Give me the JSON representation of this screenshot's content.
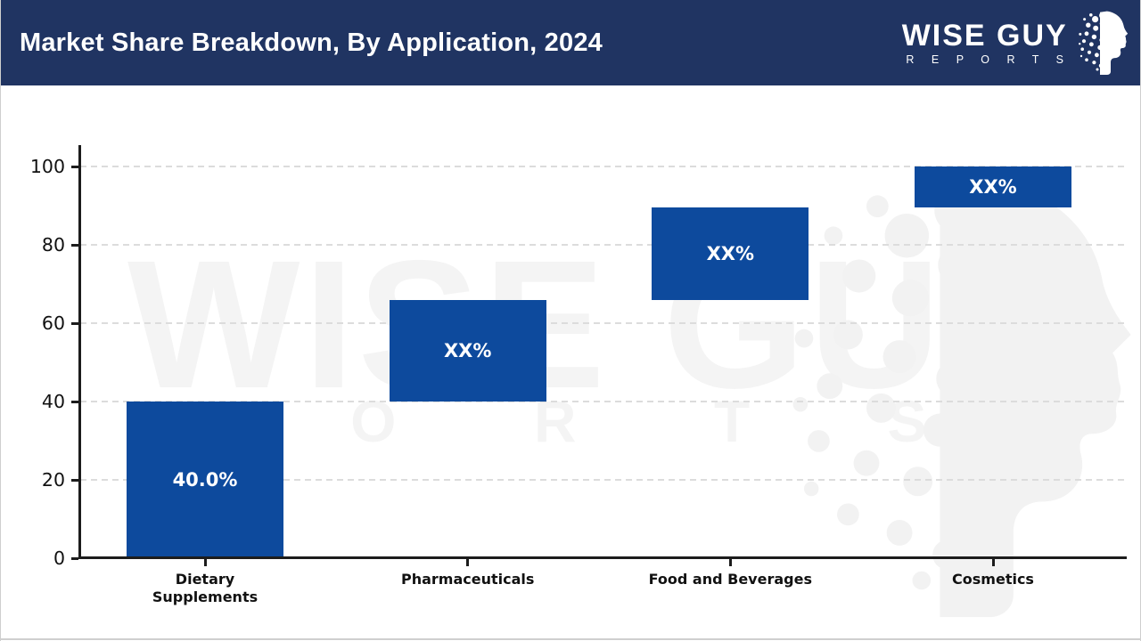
{
  "header": {
    "title": "Market Share Breakdown, By Application, 2024",
    "background_color": "#203462",
    "logo": {
      "wordmark": "WISE GUY",
      "sub": "R E P O R T S",
      "head_icon": "dotted-head-profile-icon"
    }
  },
  "watermark": {
    "line1": "WISE GUY",
    "line2": "P O R T S"
  },
  "chart_data": {
    "type": "bar",
    "subtype": "waterfall",
    "title": "Market Share Breakdown, By Application, 2024",
    "categories": [
      "Dietary Supplements",
      "Pharmaceuticals",
      "Food and Beverages",
      "Cosmetics"
    ],
    "categories_display": [
      [
        "Dietary",
        "Supplements"
      ],
      [
        "Pharmaceuticals"
      ],
      [
        "Food and Beverages"
      ],
      [
        "Cosmetics"
      ]
    ],
    "series": [
      {
        "name": "Market Share",
        "segments": [
          [
            0,
            40
          ],
          [
            40,
            66
          ],
          [
            66,
            89.5
          ],
          [
            89.5,
            100
          ]
        ]
      }
    ],
    "bar_labels": [
      "40.0%",
      "XX%",
      "XX%",
      "XX%"
    ],
    "ylim": [
      0,
      100
    ],
    "yticks": [
      0,
      20,
      40,
      60,
      80,
      100
    ],
    "xlabel": "",
    "ylabel": "",
    "grid": "horizontal-dashed",
    "legend": "none",
    "colors": {
      "bar": "#0d4a9d",
      "bar_label": "#ffffff",
      "grid": "#dcdcdc",
      "axis": "#1c1c1c"
    }
  }
}
